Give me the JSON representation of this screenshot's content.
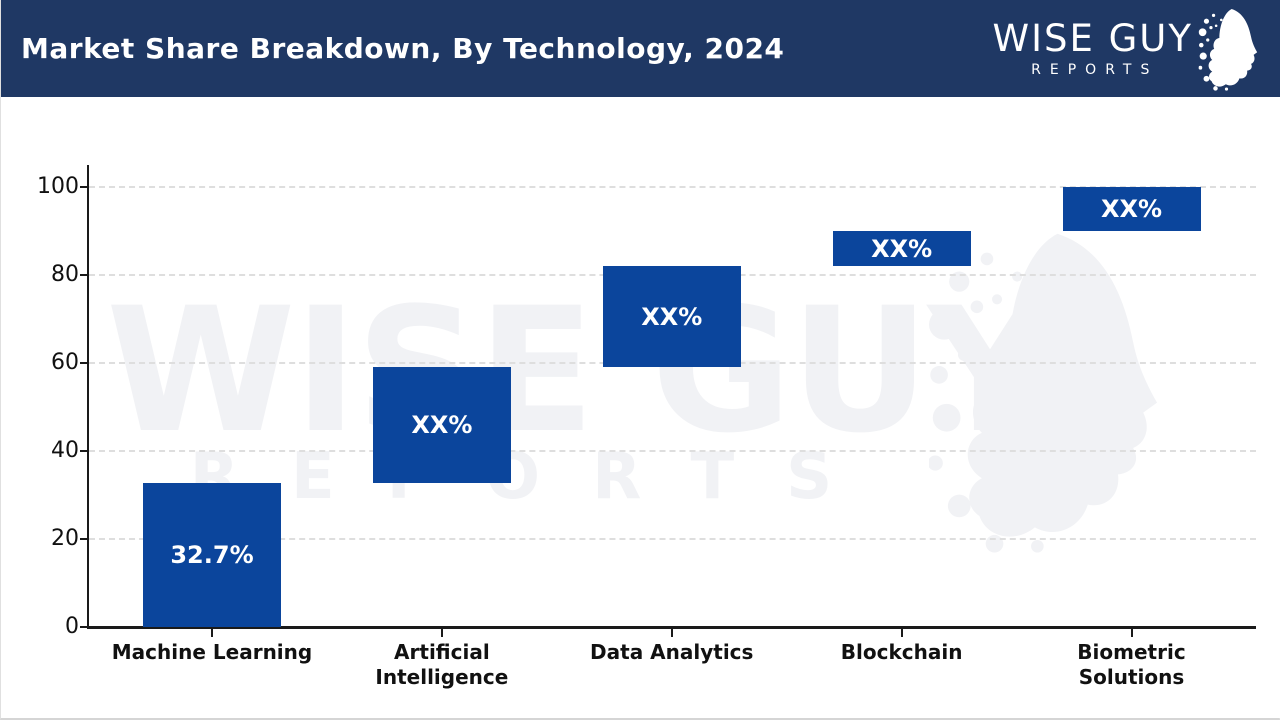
{
  "header": {
    "title": "Market Share Breakdown, By Technology, 2024",
    "logo": {
      "wordmark": "WISE GUY",
      "subtext": "REPORTS",
      "icon": "dotted-head-profile-icon"
    }
  },
  "watermark": {
    "line1": "WISE GUY",
    "line2": "REPORTS",
    "icon": "dotted-head-profile-watermark"
  },
  "colors": {
    "header_bg": "#1f3864",
    "bar": "#0b459c",
    "bar_label_text": "#ffffff",
    "gridline": "#dedede",
    "axis": "#1a1a1a",
    "tick_text": "#111111",
    "watermark": "#f1f2f5",
    "canvas_bg": "#ffffff"
  },
  "chart_data": {
    "type": "bar",
    "subtype": "waterfall",
    "title": "Market Share Breakdown, By Technology, 2024",
    "xlabel": "",
    "ylabel": "",
    "legend": "none",
    "grid": "dashed-horizontal",
    "ylim": [
      0,
      100
    ],
    "y_ticks": [
      0,
      20,
      40,
      60,
      80,
      100
    ],
    "categories": [
      "Machine Learning",
      "Artificial\nIntelligence",
      "Data Analytics",
      "Blockchain",
      "Biometric\nSolutions"
    ],
    "segments": [
      {
        "category": "Machine Learning",
        "start": 0,
        "end": 32.7,
        "label": "32.7%"
      },
      {
        "category": "Artificial Intelligence",
        "start": 32.7,
        "end": 59,
        "label": "XX%"
      },
      {
        "category": "Data Analytics",
        "start": 59,
        "end": 82,
        "label": "XX%"
      },
      {
        "category": "Blockchain",
        "start": 82,
        "end": 90,
        "label": "XX%"
      },
      {
        "category": "Biometric Solutions",
        "start": 90,
        "end": 100,
        "label": "XX%"
      }
    ]
  }
}
